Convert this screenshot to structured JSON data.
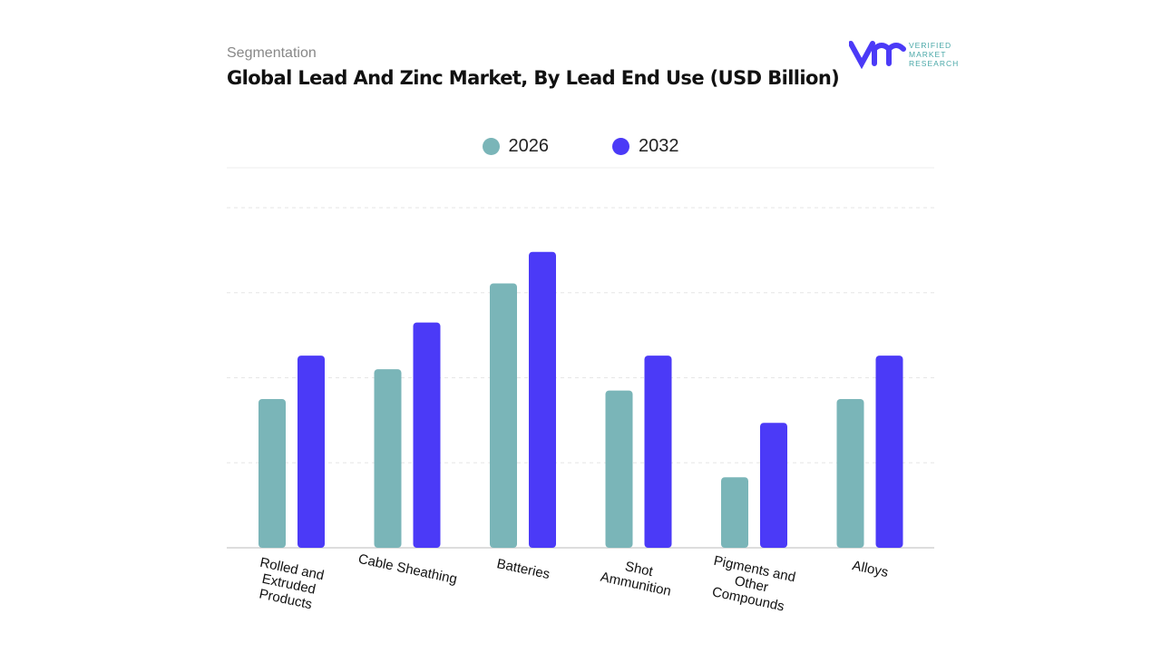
{
  "header": {
    "segment": "Segmentation",
    "title": "Global Lead And Zinc Market, By Lead End Use (USD Billion)",
    "logo_text": [
      "VERIFIED",
      "MARKET",
      "RESEARCH"
    ]
  },
  "chart_data": {
    "type": "bar",
    "title": "Global Lead And Zinc Market, By Lead End Use (USD Billion)",
    "categories": [
      "Rolled and Extruded Products",
      "Cable Sheathing",
      "Batteries",
      "Shot Ammunition",
      "Pigments and Other Compounds",
      "Alloys"
    ],
    "category_lines": [
      [
        "Rolled and",
        "Extruded",
        "Products"
      ],
      [
        "Cable Sheathing"
      ],
      [
        "Batteries"
      ],
      [
        "Shot",
        "Ammunition"
      ],
      [
        "Pigments and",
        "Other",
        "Compounds"
      ],
      [
        "Alloys"
      ]
    ],
    "series": [
      {
        "name": "2026",
        "color": "#7ab5b8",
        "values": [
          1.75,
          2.1,
          3.11,
          1.85,
          0.83,
          1.75
        ]
      },
      {
        "name": "2032",
        "color": "#4b3af7",
        "values": [
          2.26,
          2.65,
          3.48,
          2.26,
          1.47,
          2.26
        ]
      }
    ],
    "ylim": [
      0,
      4
    ],
    "grid": true,
    "legend": "top",
    "y_tick_labels_shown": false
  }
}
